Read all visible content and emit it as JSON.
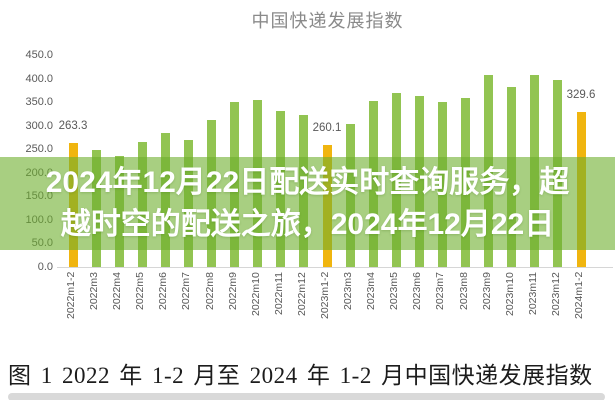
{
  "banner": {
    "lines": [
      "2024年12月22日配送实时查询服务，超",
      "越时空的配送之旅，2024年12月22日"
    ],
    "bg": "rgba(110,175,45,0.60)",
    "text_color": "#ffffff"
  },
  "caption": "图 1  2022 年 1-2 月至 2024 年 1-2 月中国快递发展指数",
  "chart_data": {
    "type": "bar",
    "title": "中国快递发展指数",
    "categories": [
      "2022m1-2",
      "2022m3",
      "2022m4",
      "2022m5",
      "2022m6",
      "2022m7",
      "2022m8",
      "2022m9",
      "2022m10",
      "2022m11",
      "2022m12",
      "2023m1-2",
      "2023m3",
      "2023m4",
      "2023m5",
      "2023m6",
      "2023m7",
      "2023m8",
      "2023m9",
      "2023m10",
      "2023m11",
      "2023m12",
      "2024m1-2"
    ],
    "values": [
      263.3,
      249,
      237,
      266,
      286,
      271,
      312,
      351,
      356,
      333,
      324,
      260.1,
      305,
      354,
      370,
      365,
      351,
      360,
      408,
      383,
      409,
      399,
      329.6
    ],
    "data_labels": [
      {
        "category": "2022m1-2",
        "text": "263.3"
      },
      {
        "category": "2023m1-2",
        "text": "260.1"
      },
      {
        "category": "2024m1-2",
        "text": "329.6"
      }
    ],
    "highlight_categories": [
      "2022m1-2",
      "2023m1-2",
      "2024m1-2"
    ],
    "ylim": [
      0,
      450
    ],
    "ytick_step": 50,
    "ytick_labels": [
      "0.0",
      "50.0",
      "100.0",
      "150.0",
      "200.0",
      "250.0",
      "300.0",
      "350.0",
      "400.0",
      "450.0"
    ],
    "xlabel": "",
    "ylabel": "",
    "grid": false,
    "legend": "none",
    "bar_color": "#92c452",
    "highlight_color": "#f0b50f",
    "axis_text_color": "#595959",
    "title_color": "#8a8a8a"
  }
}
